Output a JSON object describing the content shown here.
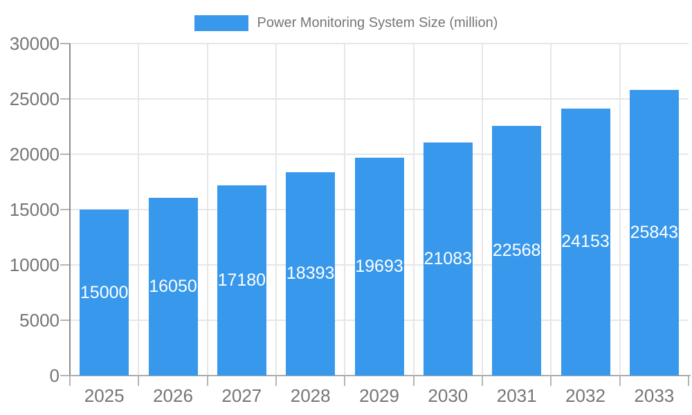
{
  "chart_data": {
    "type": "bar",
    "title": "Power Monitoring System Size (million)",
    "categories": [
      "2025",
      "2026",
      "2027",
      "2028",
      "2029",
      "2030",
      "2031",
      "2032",
      "2033"
    ],
    "series": [
      {
        "name": "Power Monitoring System Size (million)",
        "values": [
          15000,
          16050,
          17180,
          18393,
          19693,
          21083,
          22568,
          24153,
          25843
        ]
      }
    ],
    "xlabel": "",
    "ylabel": "",
    "ylim": [
      0,
      30000
    ],
    "yticks": [
      0,
      5000,
      10000,
      15000,
      20000,
      25000,
      30000
    ],
    "grid": true,
    "legend_position": "top",
    "bar_labels_inside": true,
    "colors": {
      "bar": "#3898EC",
      "bar_label": "#FFFFFF",
      "grid": "#E6E6E6",
      "axis_text": "#757575",
      "y_axis_line": "#8C8C8C",
      "x_axis_line": "#ABABAB",
      "tick": "#B5B5B5",
      "background": "#FFFFFF"
    }
  }
}
